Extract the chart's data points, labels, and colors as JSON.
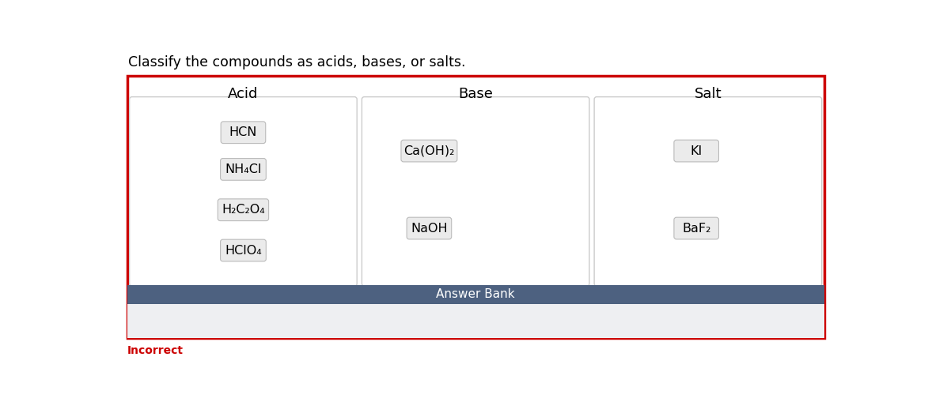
{
  "title": "Classify the compounds as acids, bases, or salts.",
  "title_fontsize": 12.5,
  "columns": [
    "Acid",
    "Base",
    "Salt"
  ],
  "acid_items": [
    "HCN",
    "NH₄Cl",
    "H₂C₂O₄",
    "HClO₄"
  ],
  "base_items": [
    "Ca(OH)₂",
    "NaOH"
  ],
  "salt_items": [
    "KI",
    "BaF₂"
  ],
  "answer_bank_label": "Answer Bank",
  "incorrect_label": "Incorrect",
  "outer_border_color": "#cc0000",
  "inner_box_bg": "#ffffff",
  "inner_box_border": "#cccccc",
  "pill_bg": "#ebebeb",
  "pill_border": "#bbbbbb",
  "answer_bank_bg": "#4d6180",
  "answer_bank_text": "#ffffff",
  "answer_bank_area_bg": "#eeeff2",
  "incorrect_color": "#cc0000",
  "col_header_fontsize": 13,
  "item_fontsize": 11.5,
  "answer_bank_fontsize": 11
}
